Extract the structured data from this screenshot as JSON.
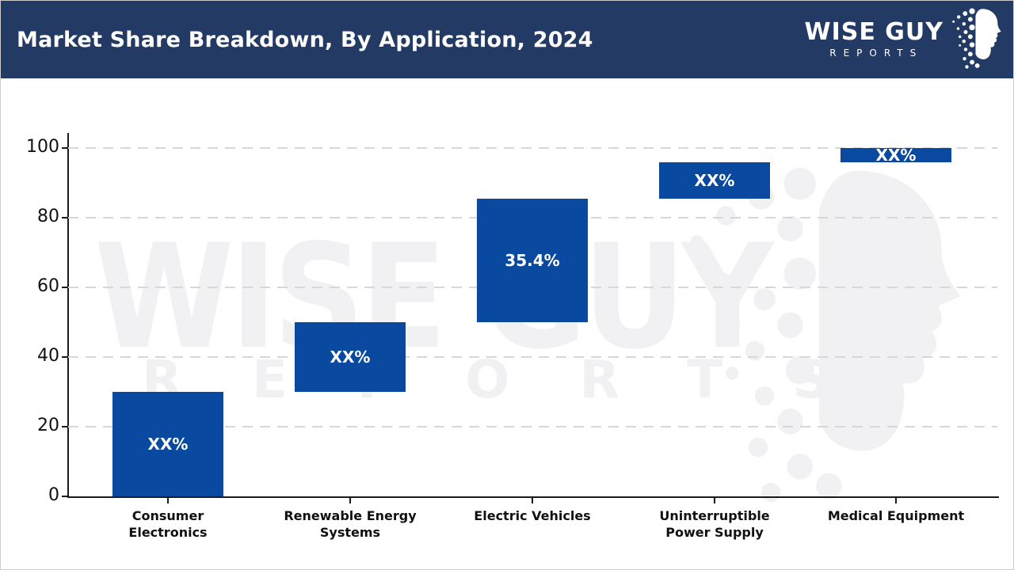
{
  "header": {
    "title": "Market Share Breakdown, By Application, 2024",
    "logo": {
      "line1": "WISE GUY",
      "line2": "REPORTS"
    }
  },
  "watermark": {
    "line1": "WISE GUY",
    "line2": "REPORTS"
  },
  "chart_data": {
    "type": "bar",
    "subtype": "waterfall",
    "title": "Market Share Breakdown, By Application, 2024",
    "categories": [
      [
        "Consumer",
        "Electronics"
      ],
      [
        "Renewable Energy",
        "Systems"
      ],
      [
        "Electric Vehicles"
      ],
      [
        "Uninterruptible",
        "Power Supply"
      ],
      [
        "Medical Equipment"
      ]
    ],
    "bars": [
      {
        "start": 0,
        "end": 30,
        "label": "XX%"
      },
      {
        "start": 30,
        "end": 50,
        "label": "XX%"
      },
      {
        "start": 50,
        "end": 85.4,
        "label": "35.4%"
      },
      {
        "start": 85.4,
        "end": 96,
        "label": "XX%"
      },
      {
        "start": 96,
        "end": 100,
        "label": "XX%"
      }
    ],
    "yticks": [
      0,
      20,
      40,
      60,
      80,
      100
    ],
    "ylim": [
      0,
      104
    ],
    "xlabel": "",
    "ylabel": "",
    "grid": true,
    "legend": false,
    "bar_color": "#0A49A0",
    "bar_label_color": "#ffffff"
  }
}
